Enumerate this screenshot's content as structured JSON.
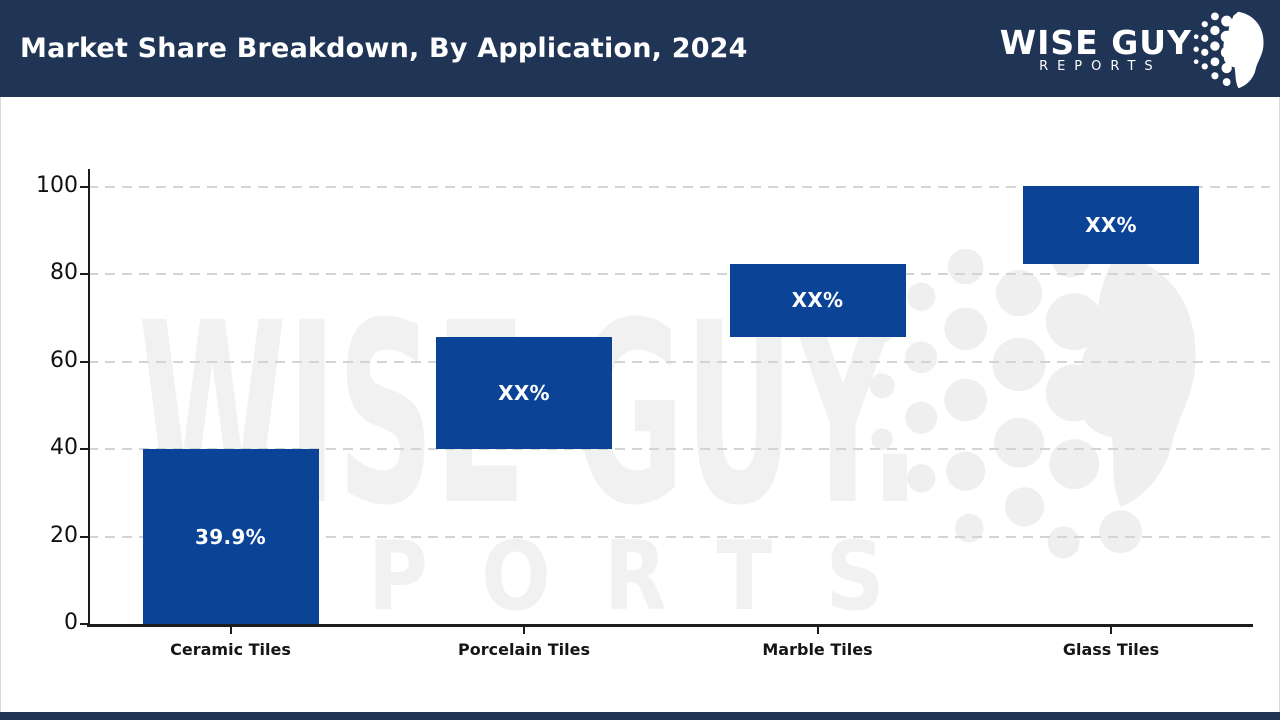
{
  "header": {
    "title": "Market Share Breakdown, By Application, 2024",
    "logo": {
      "line1": "WISE GUY",
      "line2": "REPORTS"
    }
  },
  "watermark": {
    "line1": "WISE GUY.",
    "line2": "PORTS"
  },
  "chart_data": {
    "type": "bar",
    "subtype": "floating-waterfall",
    "title": "Market Share Breakdown, By Application, 2024",
    "categories": [
      "Ceramic Tiles",
      "Porcelain Tiles",
      "Marble Tiles",
      "Glass Tiles"
    ],
    "bars": [
      {
        "category": "Ceramic Tiles",
        "start": 0,
        "end": 39.9,
        "label": "39.9%"
      },
      {
        "category": "Porcelain Tiles",
        "start": 39.9,
        "end": 65.6,
        "label": "XX%"
      },
      {
        "category": "Marble Tiles",
        "start": 65.6,
        "end": 82.4,
        "label": "XX%"
      },
      {
        "category": "Glass Tiles",
        "start": 82.4,
        "end": 100.2,
        "label": "XX%"
      }
    ],
    "ylim": [
      0,
      100
    ],
    "yticks": [
      0,
      20,
      40,
      60,
      80,
      100
    ],
    "xlabel": "",
    "ylabel": "",
    "grid": "horizontal-dashed",
    "legend": "none",
    "bar_color": "#0b4397",
    "bar_label_color": "#ffffff"
  },
  "colors": {
    "header_bg": "#203456",
    "footer_bg": "#203456",
    "bar_blue": "#0b4397",
    "axis": "#1c1c1c",
    "gridline": "#d4d4d4",
    "watermark": "#f1f1f1",
    "page_border": "#d9d9d9"
  }
}
